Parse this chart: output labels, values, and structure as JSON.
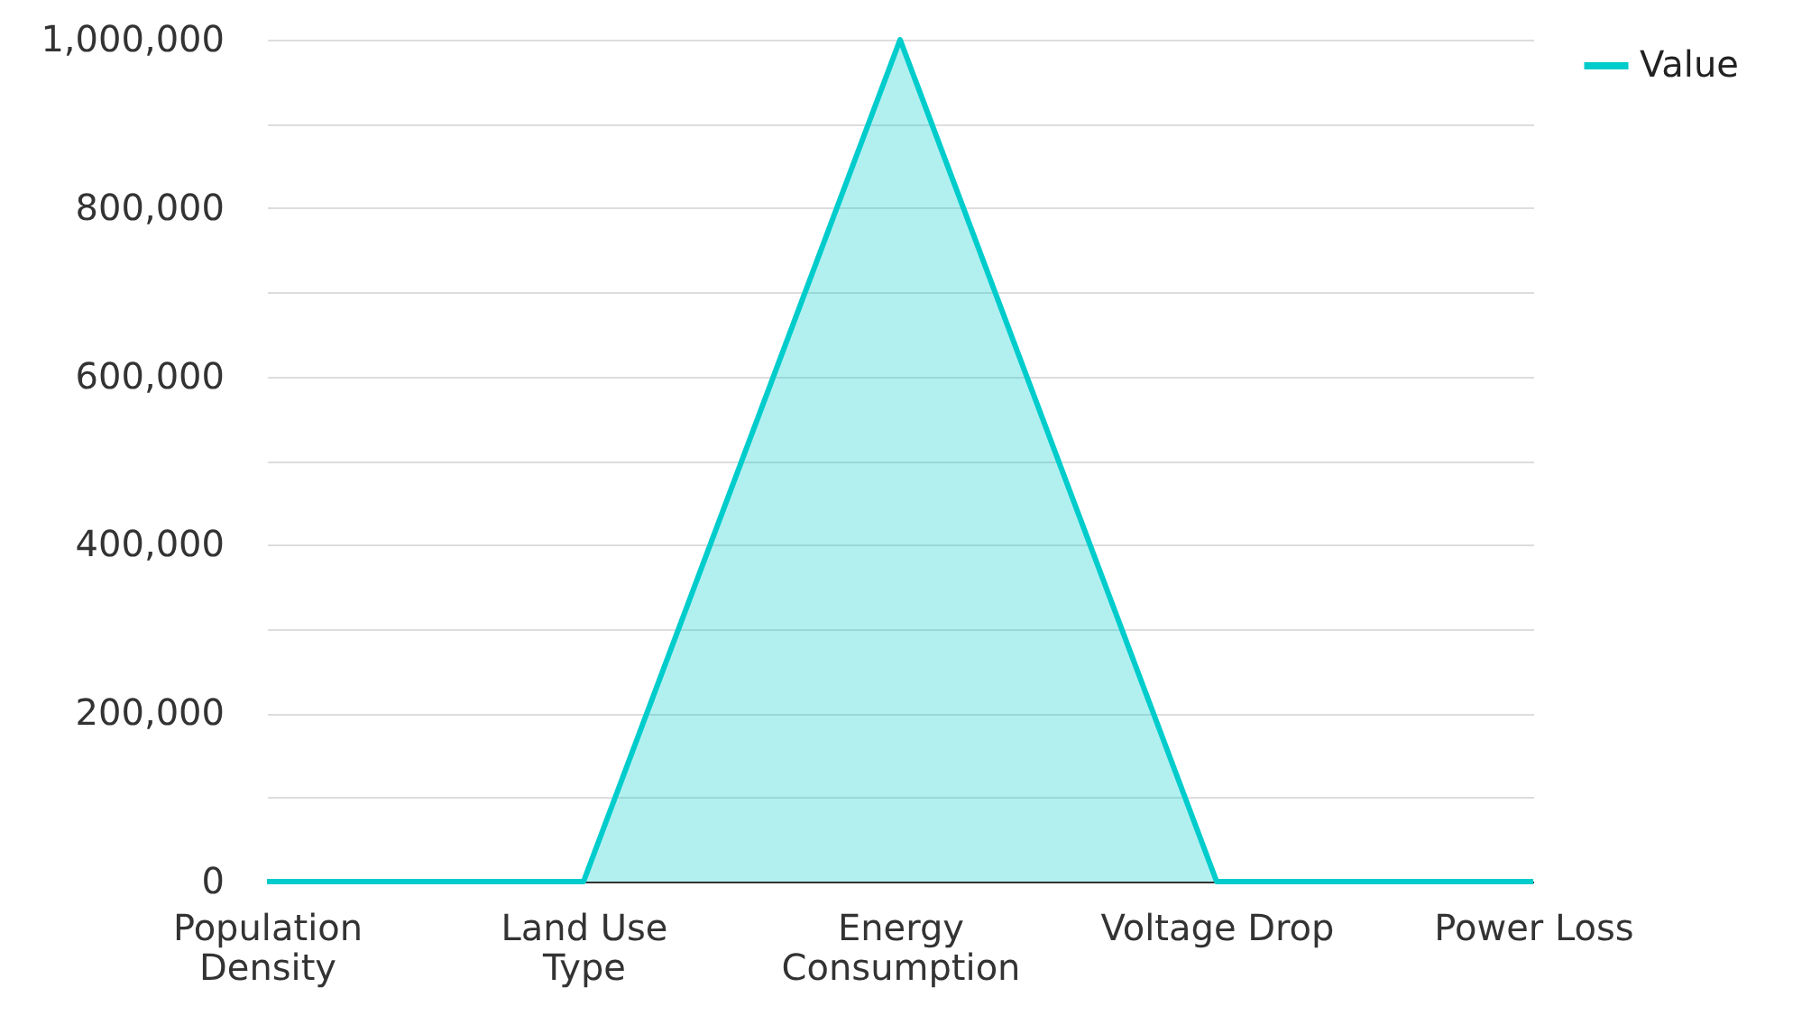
{
  "chart_data": {
    "type": "area",
    "categories": [
      "Population Density",
      "Land Use Type",
      "Energy Consumption",
      "Voltage Drop",
      "Power Loss"
    ],
    "series": [
      {
        "name": "Value",
        "color": "#00cccc",
        "values": [
          0,
          0,
          1000000,
          0,
          0
        ]
      }
    ],
    "ylim": [
      0,
      1000000
    ],
    "yticks": [
      0,
      {
        "value": 100000,
        "label": null
      },
      {
        "value": 200000,
        "label": "200,000"
      },
      {
        "value": 300000,
        "label": null
      },
      {
        "value": 400000,
        "label": "400,000"
      },
      {
        "value": 500000,
        "label": null
      },
      {
        "value": 600000,
        "label": "600,000"
      },
      {
        "value": 700000,
        "label": null
      },
      {
        "value": 800000,
        "label": "800,000"
      },
      {
        "value": 900000,
        "label": null
      },
      {
        "value": 1000000,
        "label": "1,000,000"
      }
    ],
    "grid": "y",
    "legend": "top right"
  }
}
